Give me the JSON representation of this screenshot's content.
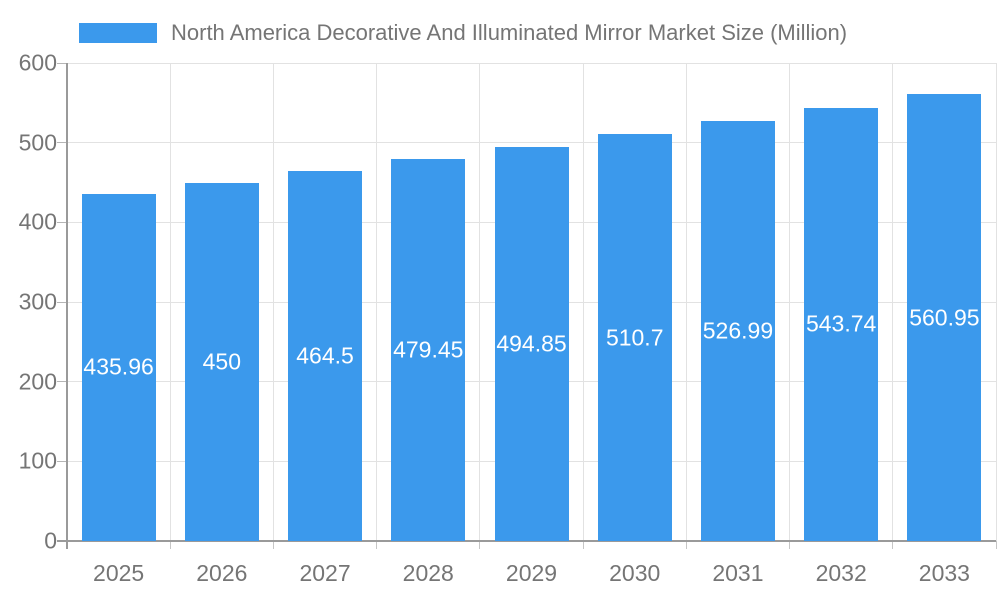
{
  "legend": {
    "label": "North America Decorative And Illuminated Mirror Market Size (Million)"
  },
  "chart_data": {
    "type": "bar",
    "title": "North America Decorative And Illuminated Mirror Market Size (Million)",
    "categories": [
      "2025",
      "2026",
      "2027",
      "2028",
      "2029",
      "2030",
      "2031",
      "2032",
      "2033"
    ],
    "values": [
      435.96,
      450,
      464.5,
      479.45,
      494.85,
      510.7,
      526.99,
      543.74,
      560.95
    ],
    "value_labels": [
      "435.96",
      "450",
      "464.5",
      "479.45",
      "494.85",
      "510.7",
      "526.99",
      "543.74",
      "560.95"
    ],
    "xlabel": "",
    "ylabel": "",
    "ylim": [
      0,
      600
    ],
    "ytick_step": 100,
    "ytick_labels": [
      "0",
      "100",
      "200",
      "300",
      "400",
      "500",
      "600"
    ],
    "grid": true,
    "legend_position": "top-left",
    "bar_color": "#3b99ec",
    "value_label_color": "#ffffff",
    "axis_text_color": "#757575",
    "gridline_color": "#e2e2e2",
    "axis_line_color": "#9a9a9a"
  }
}
